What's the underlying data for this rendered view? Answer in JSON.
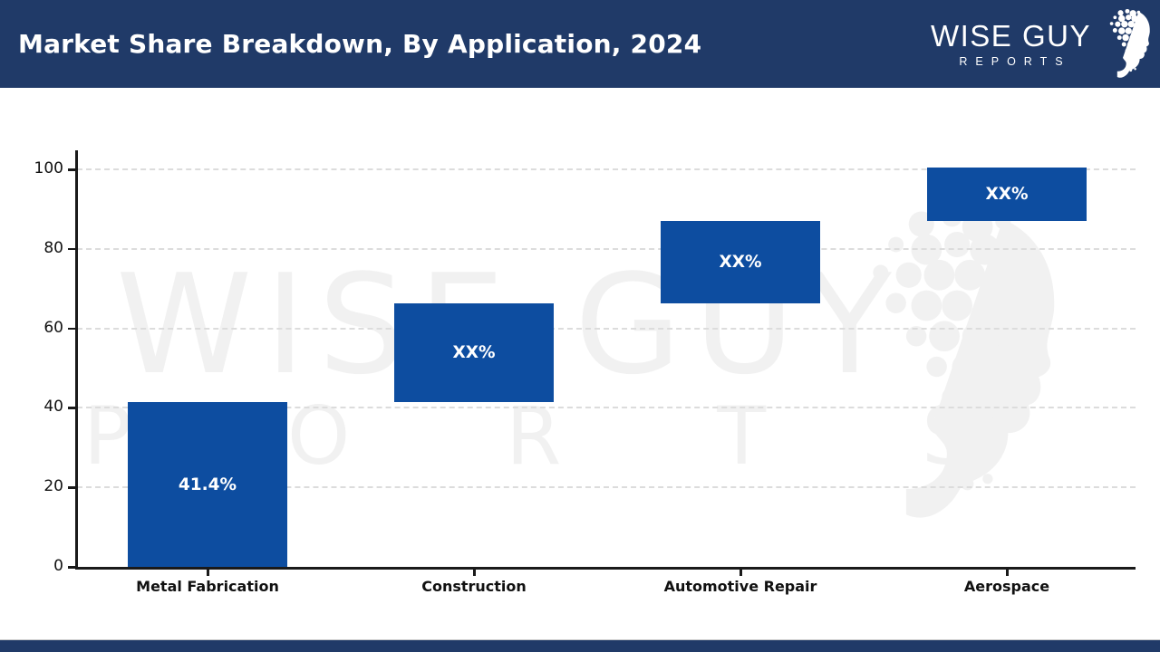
{
  "header": {
    "title": "Market Share Breakdown, By Application, 2024",
    "logo": {
      "line1": "WISE GUY",
      "line2": "REPORTS"
    }
  },
  "watermark": {
    "line1": "WISE GUY",
    "line2": "P O R T S"
  },
  "colors": {
    "header_bg": "#203a68",
    "bar": "#0d4da0",
    "bar_label": "#ffffff",
    "gridline": "#dcdcdc",
    "axis": "#1a1a1a",
    "watermark": "#f1f1f1"
  },
  "chart_data": {
    "type": "bar",
    "variant": "waterfall",
    "title": "Market Share Breakdown, By Application, 2024",
    "categories": [
      "Metal Fabrication",
      "Construction",
      "Automotive Repair",
      "Aerospace"
    ],
    "bars": [
      {
        "category": "Metal Fabrication",
        "start": 0,
        "end": 41.4,
        "label": "41.4%"
      },
      {
        "category": "Construction",
        "start": 41.4,
        "end": 66.3,
        "label": "XX%"
      },
      {
        "category": "Automotive Repair",
        "start": 66.3,
        "end": 87.0,
        "label": "XX%"
      },
      {
        "category": "Aerospace",
        "start": 87.0,
        "end": 100.5,
        "label": "XX%"
      }
    ],
    "yticks": [
      0,
      20,
      40,
      60,
      80,
      100
    ],
    "ylim": [
      0,
      105
    ],
    "xlabel": "",
    "ylabel": "",
    "grid": "horizontal-dashed",
    "legend": "none"
  }
}
